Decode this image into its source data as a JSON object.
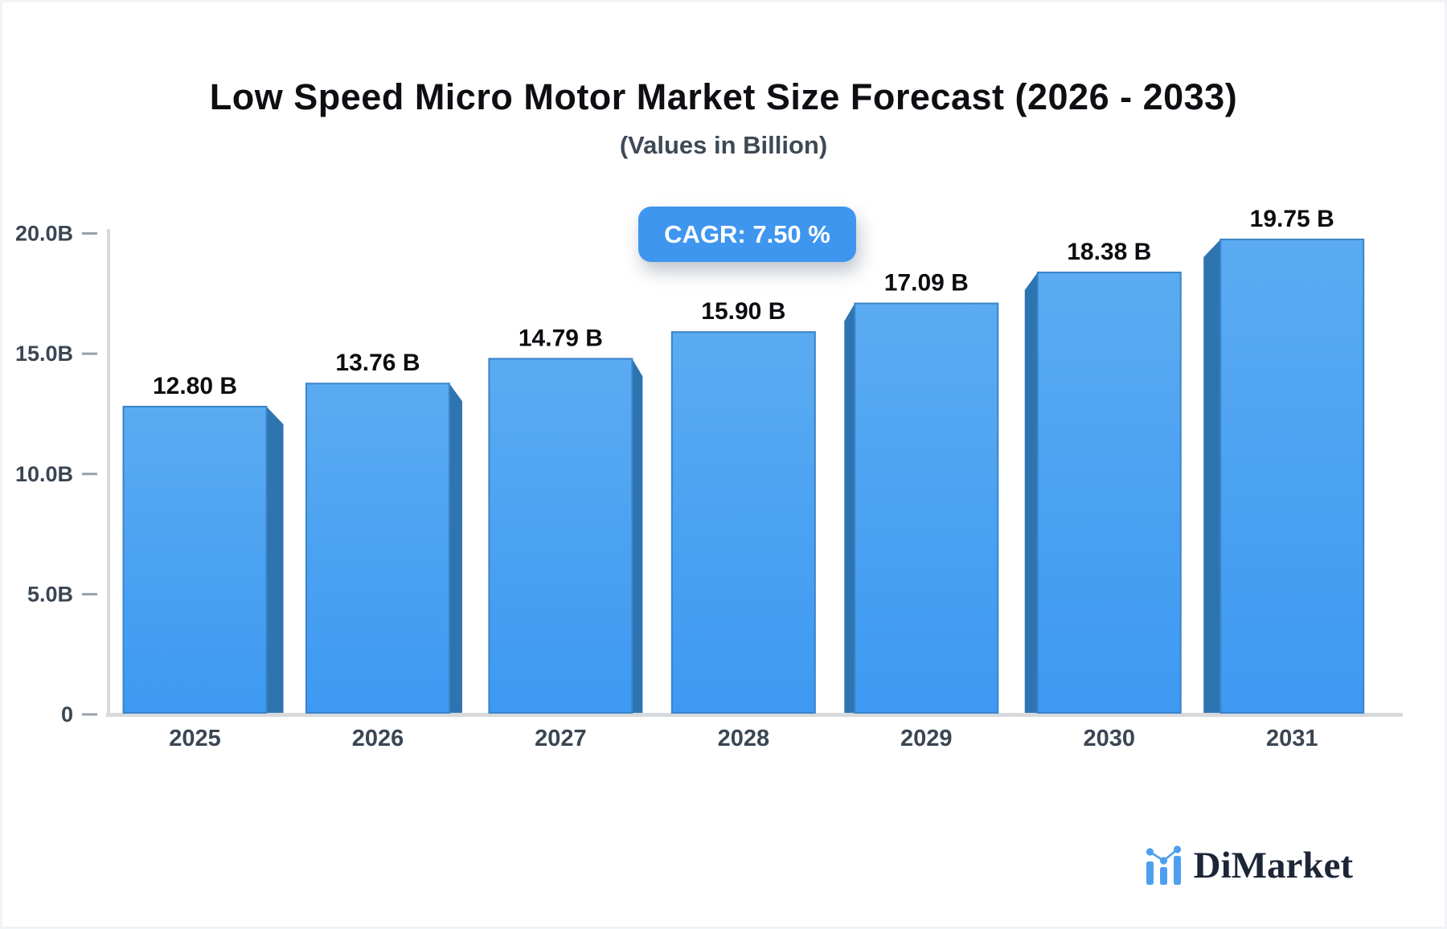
{
  "header": {
    "title": "Low Speed Micro Motor Market Size Forecast (2026 - 2033)",
    "subtitle": "(Values in Billion)"
  },
  "badge": {
    "label": "CAGR: 7.50 %",
    "bg": "#3e96ee",
    "text_color": "#ffffff"
  },
  "chart_data": {
    "type": "bar",
    "title": "Low Speed Micro Motor Market Size Forecast (2026 - 2033)",
    "subtitle": "(Values in Billion)",
    "unit": "Billion",
    "cagr": "7.50 %",
    "categories": [
      "2025",
      "2026",
      "2027",
      "2028",
      "2029",
      "2030",
      "2031"
    ],
    "values": [
      12.8,
      13.76,
      14.79,
      15.9,
      17.09,
      18.38,
      19.75
    ],
    "value_labels": [
      "12.80 B",
      "13.76 B",
      "14.79 B",
      "15.90 B",
      "17.09 B",
      "18.38 B",
      "19.75 B"
    ],
    "ylim": [
      0,
      20
    ],
    "yticks": [
      {
        "value": 0,
        "label": "0"
      },
      {
        "value": 5,
        "label": "5.0B"
      },
      {
        "value": 10,
        "label": "10.0B"
      },
      {
        "value": 15,
        "label": "15.0B"
      },
      {
        "value": 20,
        "label": "20.0B"
      }
    ],
    "grid": false,
    "legend": false,
    "style": {
      "bar_front_top": "#5babf1",
      "bar_front_bottom": "#3d99f2",
      "bar_side": "#2e74b0",
      "bar_stroke": "#3a84c9",
      "axis_line": "#d7d9dc",
      "tick_mark": "#9aa0a8",
      "tick_label": "#3b4653",
      "value_label": "#0b0d10"
    }
  },
  "logo": {
    "name": "DiMarket",
    "icon": "bar-chart-logo-icon",
    "icon_color": "#4f9ff0",
    "text_color": "#1d2637"
  }
}
